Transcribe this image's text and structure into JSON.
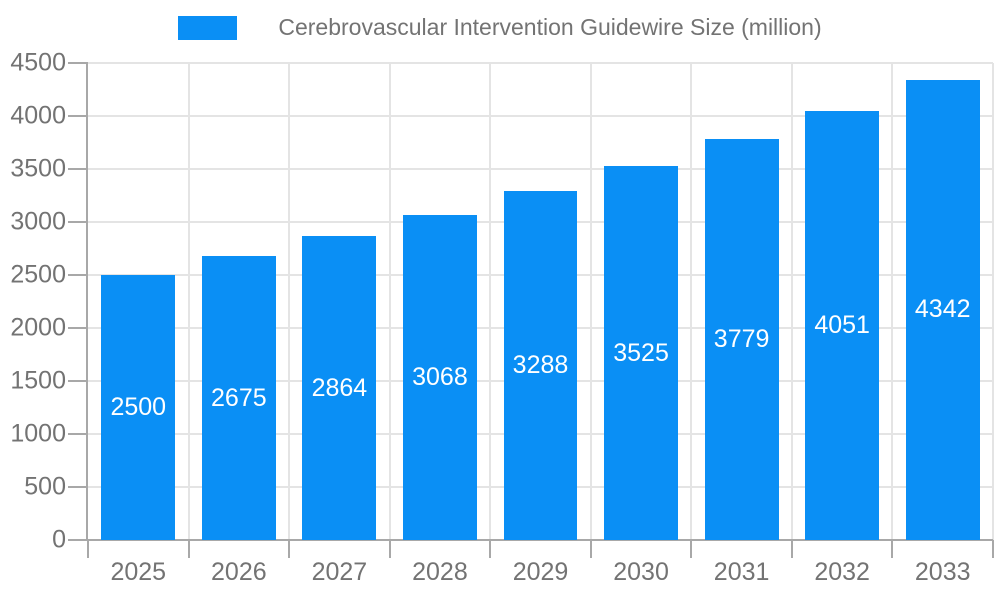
{
  "chart_data": {
    "type": "bar",
    "categories": [
      "2025",
      "2026",
      "2027",
      "2028",
      "2029",
      "2030",
      "2031",
      "2032",
      "2033"
    ],
    "series": [
      {
        "name": "Cerebrovascular Intervention Guidewire Size (million)",
        "values": [
          2500,
          2675,
          2864,
          3068,
          3288,
          3525,
          3779,
          4051,
          4342
        ]
      }
    ],
    "value_labels": [
      "2500",
      "2675",
      "2864",
      "3068",
      "3288",
      "3525",
      "3779",
      "4051",
      "4342"
    ],
    "xlabel": "",
    "ylabel": "",
    "ylim": [
      0,
      4500
    ],
    "yticks": [
      0,
      500,
      1000,
      1500,
      2000,
      2500,
      3000,
      3500,
      4000,
      4500
    ],
    "ytick_labels": [
      "0",
      "500",
      "1000",
      "1500",
      "2000",
      "2500",
      "3000",
      "3500",
      "4000",
      "4500"
    ],
    "grid": true,
    "legend_position": "top-center",
    "colors": {
      "bar": "#0a8ff5",
      "bar_value_text": "#ffffff",
      "axis_text": "#737373",
      "axis_line": "#a8a8a8",
      "grid_line": "#e4e4e4",
      "background": "#ffffff"
    }
  }
}
